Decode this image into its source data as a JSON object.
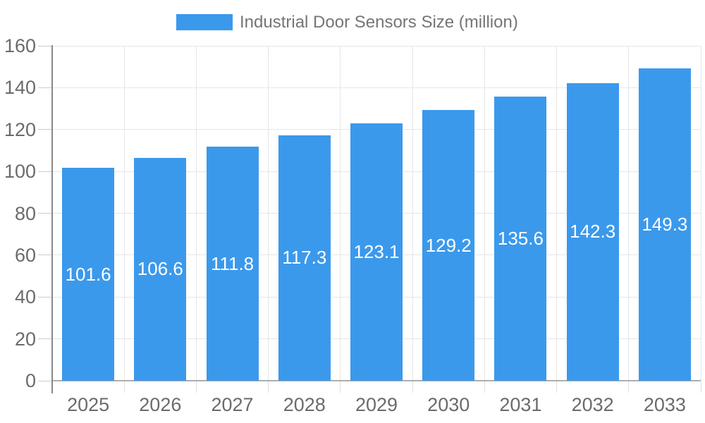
{
  "legend": {
    "label": "Industrial Door Sensors Size (million)"
  },
  "chart_data": {
    "type": "bar",
    "title": "Industrial Door Sensors Size (million)",
    "series": [
      {
        "name": "Industrial Door Sensors Size (million)",
        "values": [
          101.6,
          106.6,
          111.8,
          117.3,
          123.1,
          129.2,
          135.6,
          142.3,
          149.3
        ]
      }
    ],
    "categories": [
      "2025",
      "2026",
      "2027",
      "2028",
      "2029",
      "2030",
      "2031",
      "2032",
      "2033"
    ],
    "values": [
      101.6,
      106.6,
      111.8,
      117.3,
      123.1,
      129.2,
      135.6,
      142.3,
      149.3
    ],
    "xlabel": "",
    "ylabel": "",
    "ylim": [
      0,
      160
    ],
    "ytick_step": 20,
    "yticks": [
      0,
      20,
      40,
      60,
      80,
      100,
      120,
      140,
      160
    ],
    "grid": "horizontal-and-vertical",
    "legend_position": "top-center",
    "bar_label_position": "inside-center",
    "colors": {
      "bar": "#3B99EC",
      "bar_label_text": "#FFFFFF",
      "axis_text": "#6B6B6B",
      "legend_text": "#757575",
      "gridline": "#E6E6E6",
      "x_axis_line": "#ADADAD",
      "y_axis_line": "#898989",
      "y_tick": "#CCCCCC",
      "x_tick": "#E0E0E0",
      "background": "#FFFFFF"
    }
  }
}
